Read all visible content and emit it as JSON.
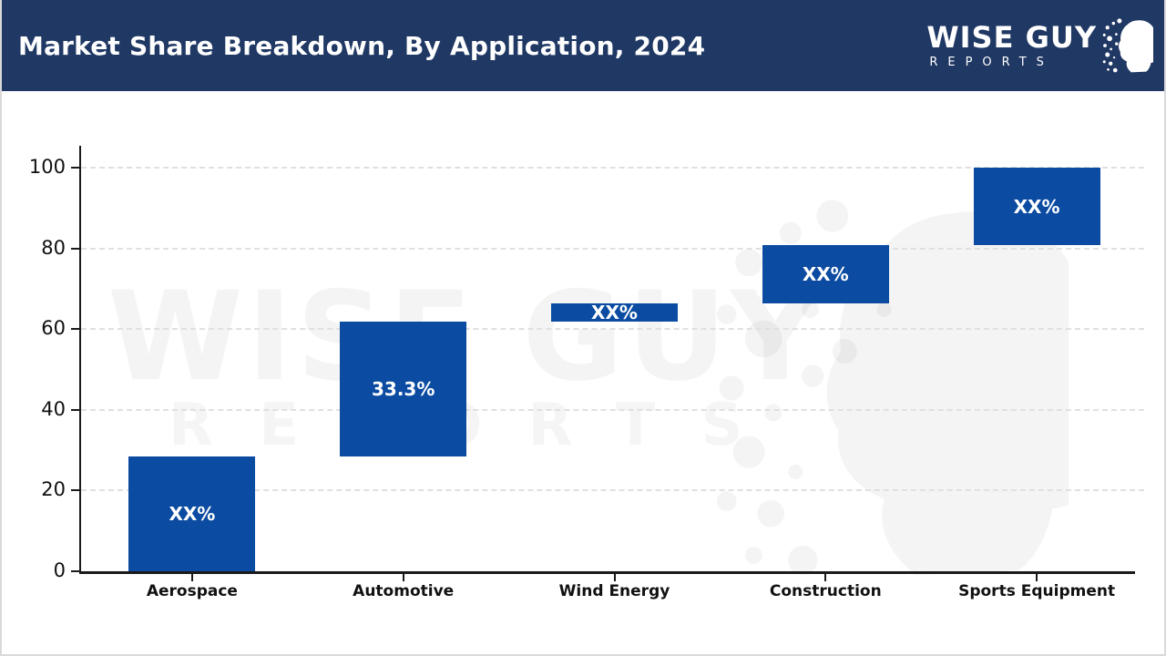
{
  "header": {
    "title": "Market Share Breakdown, By Application, 2024",
    "logo": {
      "line1": "WISE GUY",
      "line2": "REPORTS"
    }
  },
  "watermark": {
    "line1": "WISE GUY",
    "line2": "REPORTS"
  },
  "colors": {
    "header_bg": "#203864",
    "bar": "#0b4ba1",
    "bar_label": "#ffffff",
    "grid": "#e0e0e0",
    "axis": "#1a1a1a"
  },
  "chart_data": {
    "type": "bar",
    "subtype": "waterfall",
    "title": "Market Share Breakdown, By Application, 2024",
    "xlabel": "",
    "ylabel": "",
    "categories": [
      "Aerospace",
      "Automotive",
      "Wind Energy",
      "Construction",
      "Sports Equipment"
    ],
    "bars": [
      {
        "category": "Aerospace",
        "start": 0,
        "end": 28.5,
        "label": "XX%"
      },
      {
        "category": "Automotive",
        "start": 28.5,
        "end": 61.8,
        "label": "33.3%"
      },
      {
        "category": "Wind Energy",
        "start": 61.8,
        "end": 66.4,
        "label": "XX%"
      },
      {
        "category": "Construction",
        "start": 66.4,
        "end": 80.7,
        "label": "XX%"
      },
      {
        "category": "Sports Equipment",
        "start": 80.7,
        "end": 100,
        "label": "XX%"
      }
    ],
    "yticks": [
      0,
      20,
      40,
      60,
      80,
      100
    ],
    "ylim": [
      0,
      105.5
    ],
    "grid": true,
    "grid_style": "dashed",
    "legend_position": "none"
  }
}
